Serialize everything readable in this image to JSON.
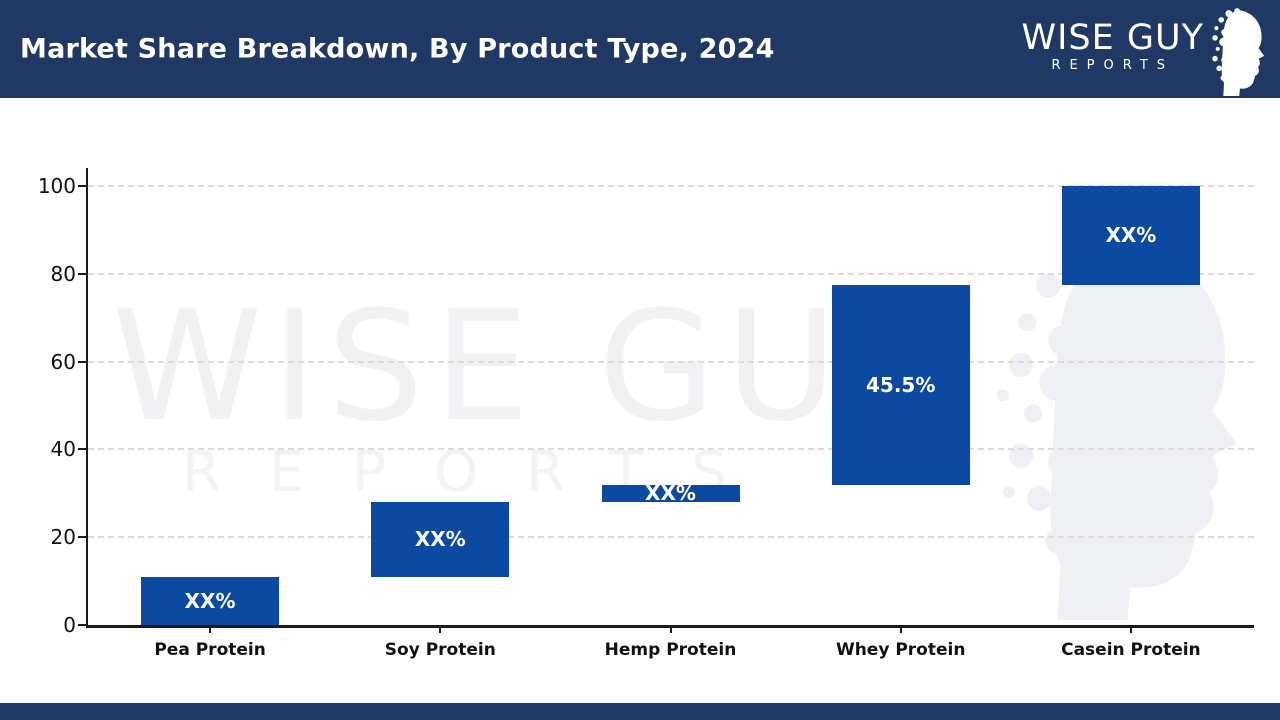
{
  "header": {
    "title": "Market Share Breakdown, By Product Type, 2024",
    "bg_color": "#203864",
    "logo": {
      "line1": "WISE GUY",
      "line2": "REPORTS"
    }
  },
  "watermark": {
    "line1": "WISE GU",
    "line2": "REPORTS"
  },
  "footer": {
    "bg_color": "#203864"
  },
  "chart_data": {
    "type": "bar",
    "subtype": "waterfall",
    "title": "Market Share Breakdown, By Product Type, 2024",
    "categories": [
      "Pea Protein",
      "Soy Protein",
      "Hemp Protein",
      "Whey Protein",
      "Casein Protein"
    ],
    "series": [
      {
        "name": "Market Share (%)",
        "segments": [
          {
            "category": "Pea Protein",
            "start": 0,
            "end": 11,
            "value": 11,
            "label": "XX%"
          },
          {
            "category": "Soy Protein",
            "start": 11,
            "end": 28,
            "value": 17,
            "label": "XX%"
          },
          {
            "category": "Hemp Protein",
            "start": 28,
            "end": 32,
            "value": 4,
            "label": "XX%"
          },
          {
            "category": "Whey Protein",
            "start": 32,
            "end": 77.5,
            "value": 45.5,
            "label": "45.5%"
          },
          {
            "category": "Casein Protein",
            "start": 77.5,
            "end": 100,
            "value": 22.5,
            "label": "XX%"
          }
        ]
      }
    ],
    "ylim": [
      0,
      100
    ],
    "yticks": [
      0,
      20,
      40,
      60,
      80,
      100
    ],
    "xlabel": "",
    "ylabel": "",
    "grid": {
      "axis": "y",
      "style": "dashed",
      "color": "#dcdcdc"
    },
    "legend": "none",
    "bar_color": "#0c4aa2",
    "bar_label_color": "#ffffff",
    "axis_color": "#1a1a1a",
    "tick_label_color": "#111111"
  }
}
